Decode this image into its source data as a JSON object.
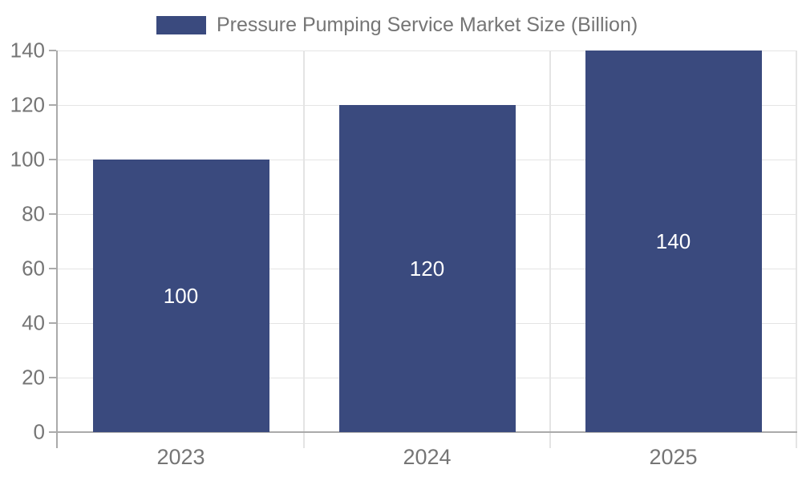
{
  "chart_data": {
    "type": "bar",
    "title": "Pressure Pumping Service Market Size (Billion)",
    "categories": [
      "2023",
      "2024",
      "2025"
    ],
    "series": [
      {
        "name": "Pressure Pumping Service Market Size (Billion)",
        "values": [
          100,
          120,
          140
        ]
      }
    ],
    "values": [
      100,
      120,
      140
    ],
    "bar_value_labels": [
      "100",
      "120",
      "140"
    ],
    "xlabel": "",
    "ylabel": "",
    "ylim": [
      0,
      140
    ],
    "yticks": [
      0,
      20,
      40,
      60,
      80,
      100,
      120,
      140
    ],
    "grid": true,
    "legend_position": "top",
    "colors": {
      "bar": "#3A4A7E",
      "grid": "#e4e4e4",
      "axis": "#aaaaaa",
      "tick_label": "#757575",
      "bar_label": "#ffffff",
      "background": "#ffffff"
    }
  }
}
